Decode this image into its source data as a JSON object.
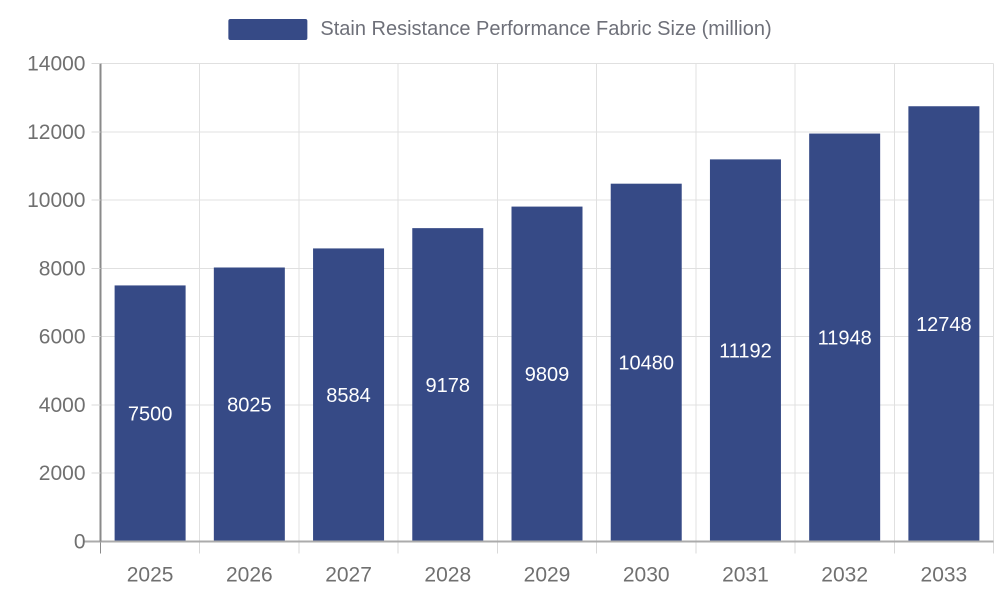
{
  "legend": {
    "label": "Stain Resistance Performance Fabric Size (million)",
    "swatch_color": "#364A86",
    "text_color": "#6E7079"
  },
  "chart_data": {
    "type": "bar",
    "title": "Stain Resistance Performance Fabric Size (million)",
    "series_name": "Stain Resistance Performance Fabric Size (million)",
    "categories": [
      "2025",
      "2026",
      "2027",
      "2028",
      "2029",
      "2030",
      "2031",
      "2032",
      "2033"
    ],
    "values": [
      7500,
      8025,
      8584,
      9178,
      9809,
      10480,
      11192,
      11948,
      12748
    ],
    "xlabel": "",
    "ylabel": "",
    "ylim": [
      0,
      14000
    ],
    "yticks": [
      0,
      2000,
      4000,
      6000,
      8000,
      10000,
      12000,
      14000
    ],
    "grid": true,
    "legend_position": "top-center",
    "bar_labels_inside": true,
    "colors": {
      "bar": "#364A86",
      "bar_label": "#ffffff",
      "axis_text": "#707070",
      "grid_line": "#e0e0e0",
      "y_axis_line": "#8a8a8a",
      "x_axis_line": "#ababab",
      "tick": "#d9d9d9",
      "background": "#ffffff"
    }
  }
}
